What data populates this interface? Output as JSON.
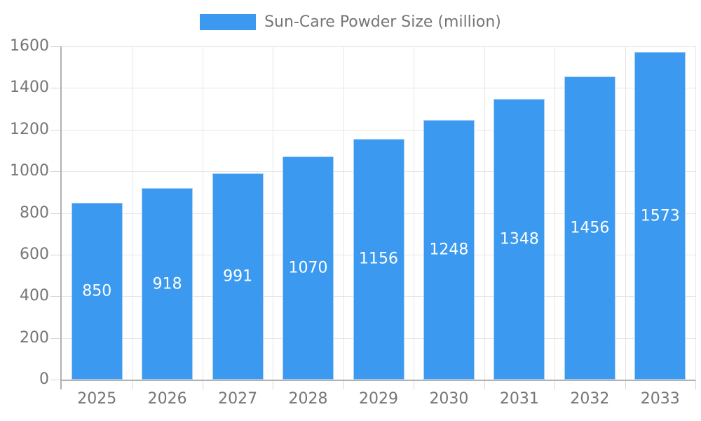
{
  "chart_data": {
    "type": "bar",
    "title": "Sun-Care Powder Size (million)",
    "series_name": "Sun-Care Powder Size (million)",
    "categories": [
      "2025",
      "2026",
      "2027",
      "2028",
      "2029",
      "2030",
      "2031",
      "2032",
      "2033"
    ],
    "values": [
      850,
      918,
      991,
      1070,
      1156,
      1248,
      1348,
      1456,
      1573
    ],
    "value_labels": [
      "850",
      "918",
      "991",
      "1070",
      "1156",
      "1248",
      "1348",
      "1456",
      "1573"
    ],
    "xlabel": "",
    "ylabel": "",
    "ylim": [
      0,
      1600
    ],
    "yticks": [
      0,
      200,
      400,
      600,
      800,
      1000,
      1200,
      1400,
      1600
    ],
    "grid": true,
    "legend_position": "top-center",
    "value_labels_position": "center-of-bar"
  },
  "colors": {
    "bar": "#3B9AF0",
    "bar_edge": "#A9CFF6",
    "grid": "#E6E6E6",
    "axis": "#B1B1B1",
    "tick": "#D6D6D6",
    "text": "#757575",
    "value_label": "#FFFFFF",
    "background": "#FFFFFF"
  }
}
